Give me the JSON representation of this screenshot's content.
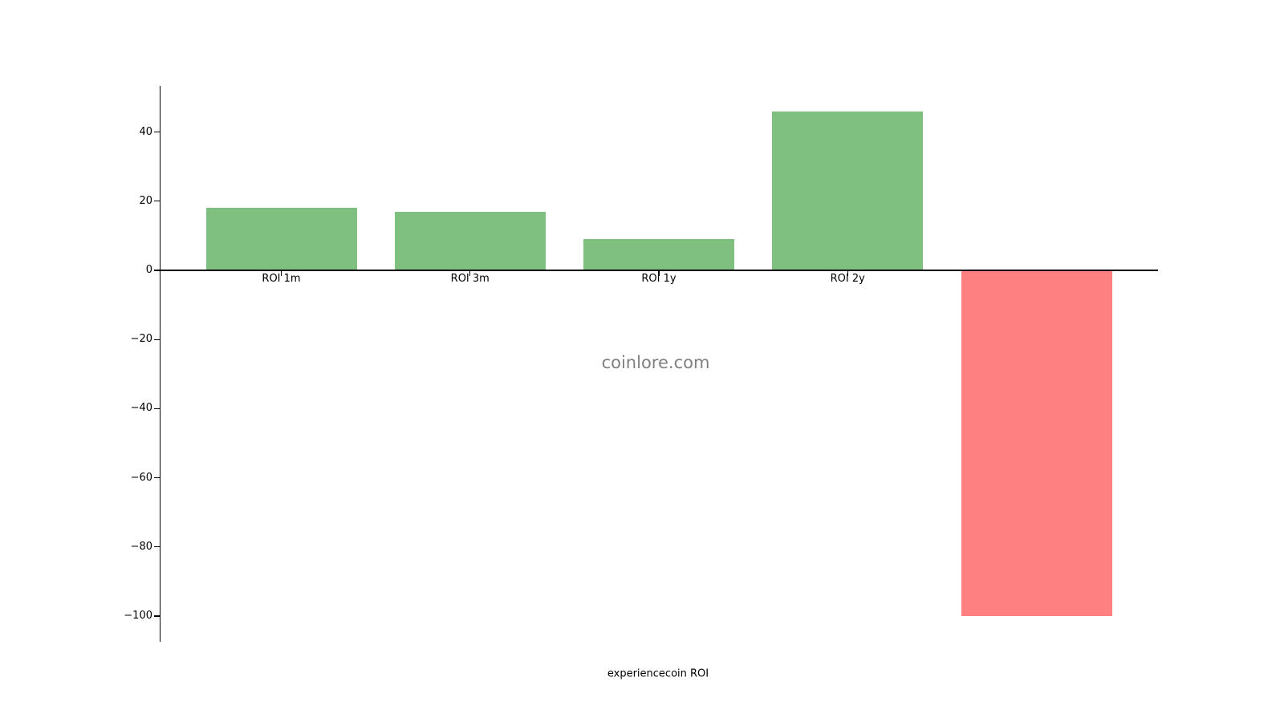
{
  "page": {
    "background_color": "#ffffff"
  },
  "chart_data": {
    "type": "bar",
    "title": "",
    "xlabel": "experiencecoin ROI",
    "ylabel": "",
    "watermark": "coinlore.com",
    "categories": [
      "ROI 1m",
      "ROI 3m",
      "ROI 1y",
      "ROI 2y",
      ""
    ],
    "values": [
      18,
      17,
      9,
      46,
      -100
    ],
    "bar_colors": [
      "#7fbf7f",
      "#7fbf7f",
      "#7fbf7f",
      "#7fbf7f",
      "#ff8080"
    ],
    "positive_color": "#7fbf7f",
    "negative_color": "#ff8080",
    "yticks": [
      40,
      20,
      0,
      -20,
      -40,
      -60,
      -80,
      -100
    ],
    "ytick_labels": [
      "40",
      "20",
      "0",
      "−20",
      "−40",
      "−60",
      "−80",
      "−100"
    ],
    "ylim": [
      -108,
      54
    ],
    "grid": false,
    "legend": null,
    "axis_color": "#000000",
    "tick_label_color": "#000000",
    "watermark_color": "#808080"
  }
}
